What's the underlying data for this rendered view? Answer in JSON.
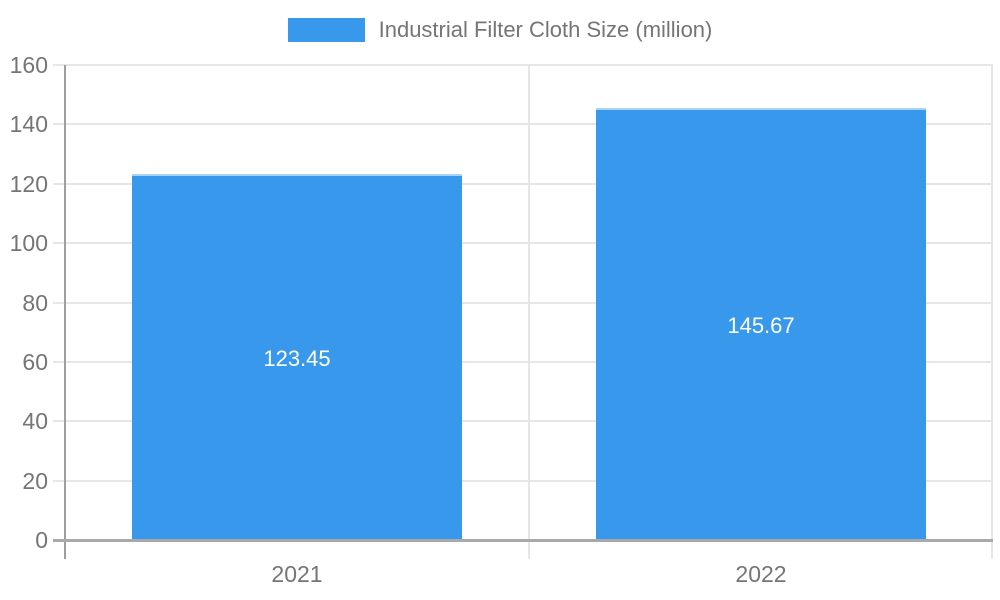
{
  "legend": {
    "items": [
      {
        "label": "Industrial Filter Cloth Size (million)",
        "color": "#3899EC"
      }
    ]
  },
  "chart_data": {
    "type": "bar",
    "title": "",
    "categories": [
      "2021",
      "2022"
    ],
    "series": [
      {
        "name": "Industrial Filter Cloth Size (million)",
        "values": [
          123.45,
          145.67
        ],
        "color": "#3899EC",
        "edge_highlight_color": "#A9D3F5",
        "value_labels": [
          "123.45",
          "145.67"
        ]
      }
    ],
    "xlabel": "",
    "ylabel": "",
    "ylim": [
      0,
      160
    ],
    "yticks": [
      0,
      20,
      40,
      60,
      80,
      100,
      120,
      140,
      160
    ],
    "grid": true,
    "legend_position": "top",
    "value_label_color": "#FFFFFF",
    "value_label_position": "center"
  },
  "colors": {
    "axis_text": "#757575",
    "gridline": "#E6E6E6",
    "y_axis_line": "#9E9E9E",
    "x_axis_line": "#A9A9A9",
    "background": "#FFFFFF"
  }
}
